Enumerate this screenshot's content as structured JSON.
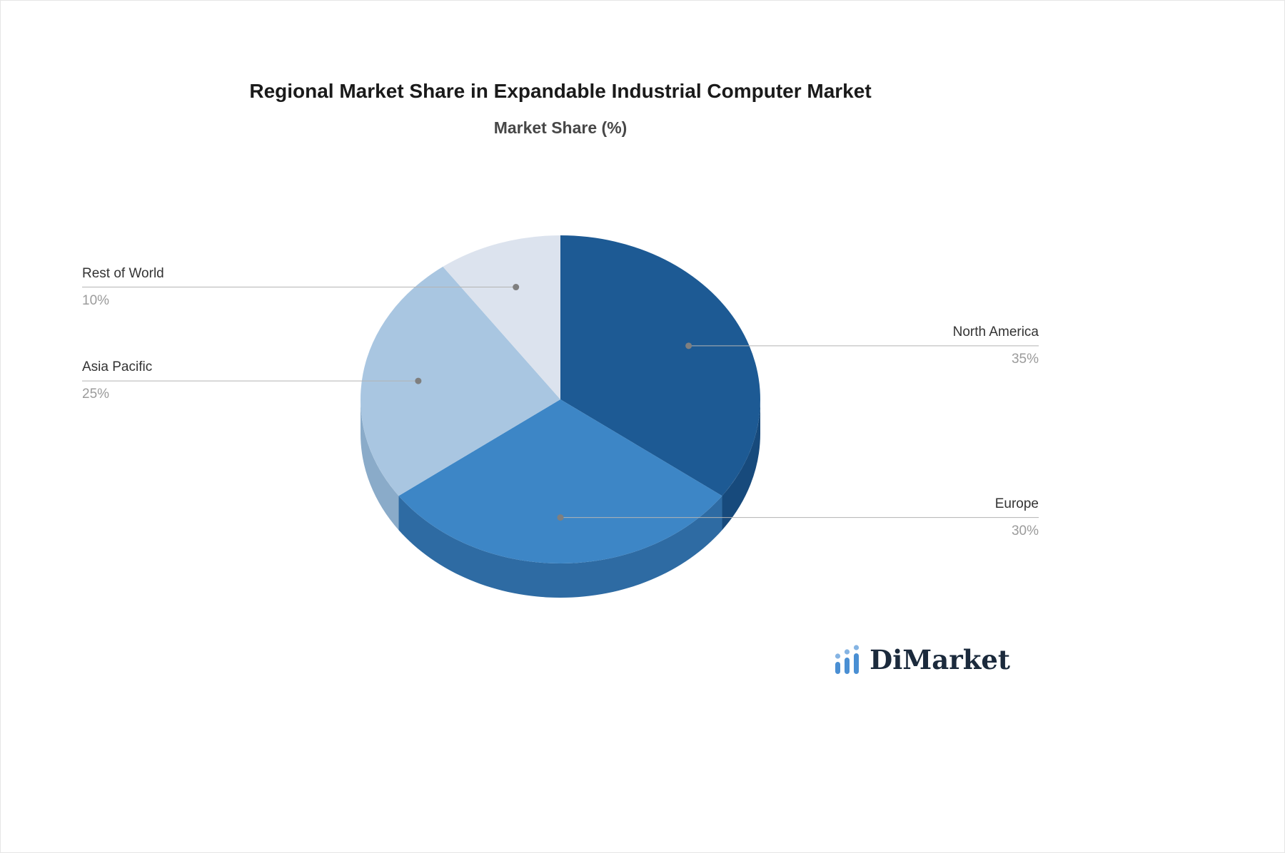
{
  "chart_data": {
    "type": "pie",
    "title": "Regional Market Share in Expandable Industrial Computer Market",
    "subtitle": "Market Share (%)",
    "unit": "%",
    "effect": "3d",
    "direction": "clockwise",
    "start_angle": -90,
    "legend_position": "none",
    "points": [
      {
        "name": "North America",
        "value": 35,
        "label": "35%",
        "color": "#1d5a94",
        "side_color": "#174a7c"
      },
      {
        "name": "Europe",
        "value": 30,
        "label": "30%",
        "color": "#3d86c6",
        "side_color": "#2e6ba3"
      },
      {
        "name": "Asia Pacific",
        "value": 25,
        "label": "25%",
        "color": "#a9c6e1",
        "side_color": "#8aabc9"
      },
      {
        "name": "Rest of World",
        "value": 10,
        "label": "10%",
        "color": "#dce3ee",
        "side_color": "#bcc7d8"
      }
    ],
    "title_color": "#1a1a1a",
    "subtitle_color": "#474747",
    "label_color": "#333333",
    "value_color": "#9b9b9b",
    "connector_color": "#b3b3b3",
    "dot_color": "#7f7f7f"
  },
  "brand": {
    "name": "DiMarket",
    "icon": "bar-chart-logo-icon",
    "color": "#1b2a3c",
    "icon_color": "#4a8fd3"
  }
}
